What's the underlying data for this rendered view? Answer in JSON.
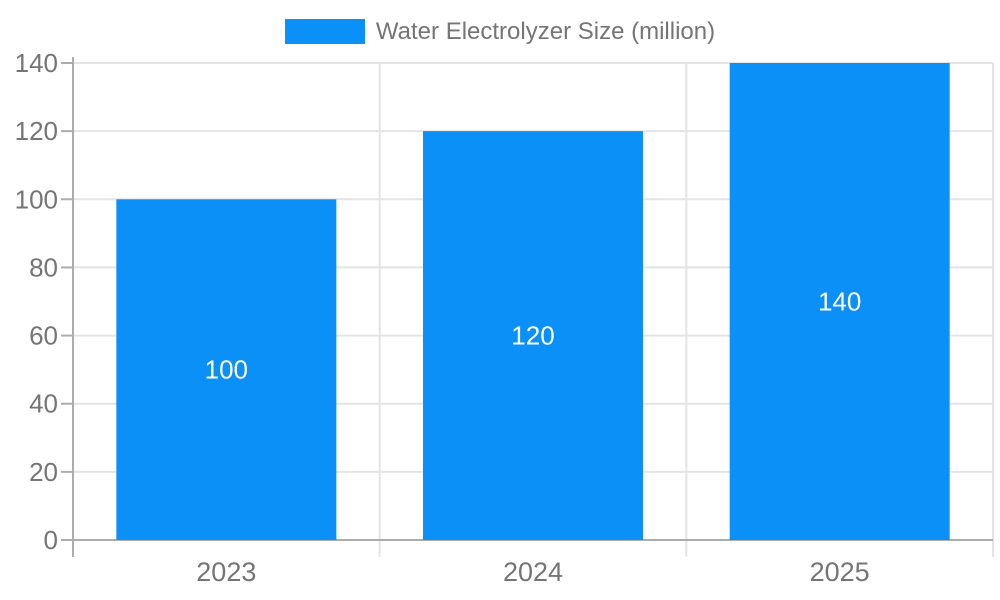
{
  "legend": {
    "label": "Water Electrolyzer Size (million)"
  },
  "colors": {
    "bar": "#0A90F6",
    "bar_label": "#FFFFFF",
    "axis_text": "#757575",
    "grid": "#E4E4E4",
    "axis_line": "#ACACAC",
    "background": "#FFFFFF"
  },
  "chart_data": {
    "type": "bar",
    "title": "",
    "xlabel": "",
    "ylabel": "",
    "series_name": "Water Electrolyzer Size (million)",
    "categories": [
      "2023",
      "2024",
      "2025"
    ],
    "values": [
      100,
      120,
      140
    ],
    "bar_value_labels": [
      "100",
      "120",
      "140"
    ],
    "ylim": [
      0,
      140
    ],
    "yticks": [
      0,
      20,
      40,
      60,
      80,
      100,
      120,
      140
    ],
    "grid": true,
    "value_labels_position": "inside-center",
    "legend_position": "top-center"
  }
}
